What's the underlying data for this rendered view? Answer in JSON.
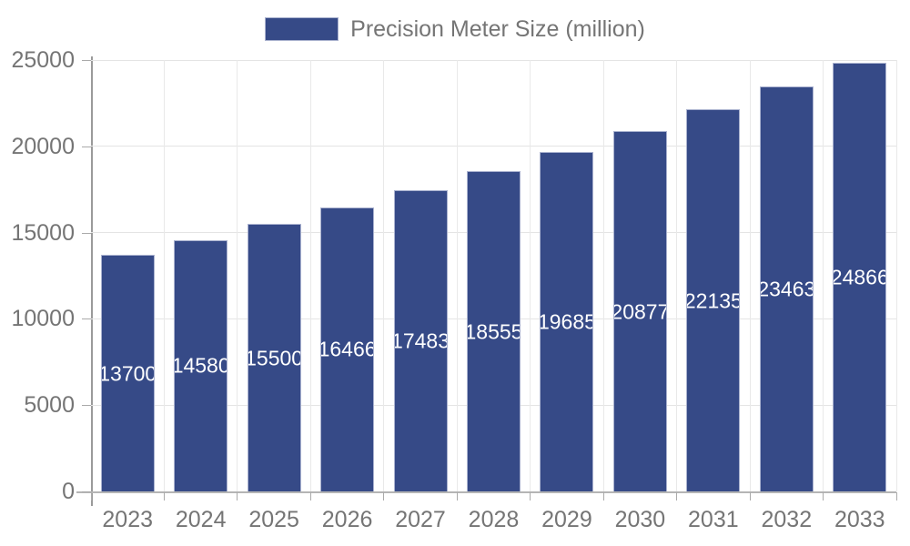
{
  "chart_data": {
    "type": "bar",
    "title": "Precision Meter Size (million)",
    "categories": [
      "2023",
      "2024",
      "2025",
      "2026",
      "2027",
      "2028",
      "2029",
      "2030",
      "2031",
      "2032",
      "2033"
    ],
    "values": [
      13700,
      14580,
      15500,
      16466,
      17483,
      18555,
      19685,
      20877,
      22135,
      23463,
      24866
    ],
    "xlabel": "",
    "ylabel": "",
    "ylim": [
      0,
      25000
    ],
    "yticks": [
      0,
      5000,
      10000,
      15000,
      20000,
      25000
    ],
    "grid": true,
    "legend_position": "top",
    "bar_color": "#364a87",
    "bar_border_color": "#aab2cf",
    "value_label_color": "#ffffff",
    "axis_text_color": "#757575",
    "gridline_color": "#e4e4e4"
  }
}
